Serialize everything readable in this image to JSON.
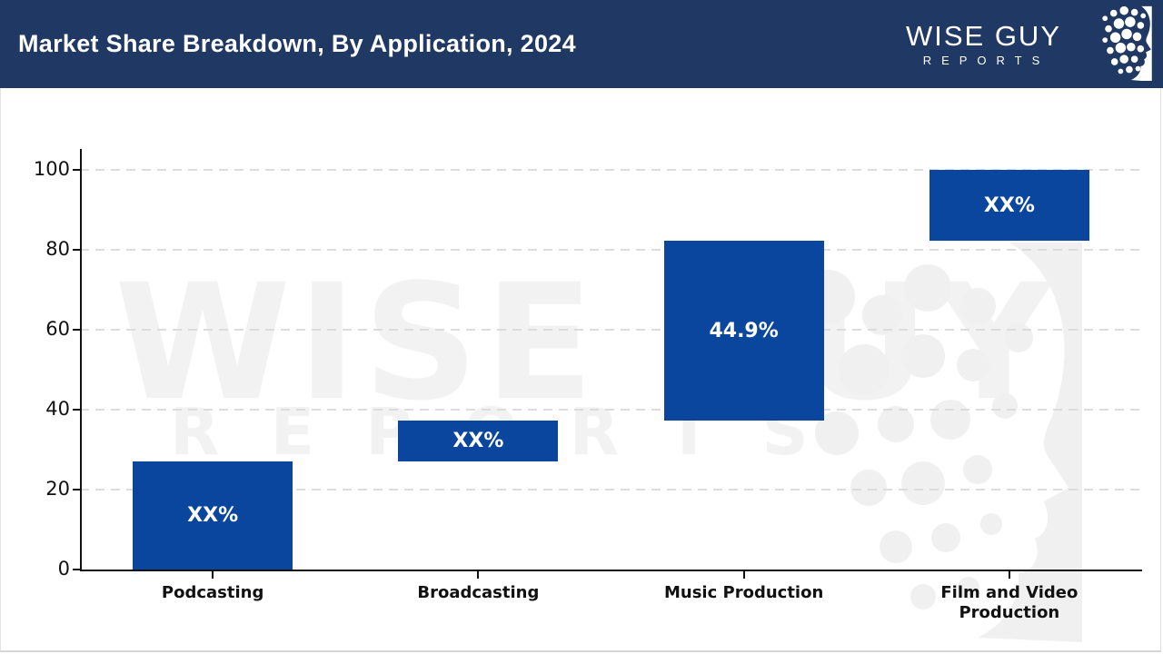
{
  "header": {
    "title": "Market Share Breakdown, By Application, 2024",
    "bg_color": "#203864"
  },
  "logo": {
    "line1": "WISE GUY",
    "line2": "REPORTS",
    "icon": "dotted-head-profile"
  },
  "watermark": {
    "line1": "WISE GUY",
    "line2": "REPORTS"
  },
  "chart_data": {
    "type": "bar",
    "subtype": "waterfall",
    "title": "Market Share Breakdown, By Application, 2024",
    "categories": [
      "Podcasting",
      "Broadcasting",
      "Music Production",
      "Film and Video Production"
    ],
    "bars": [
      {
        "category": "Podcasting",
        "start": 0,
        "end": 27.0,
        "value": 27.0,
        "label": "XX%"
      },
      {
        "category": "Broadcasting",
        "start": 27.0,
        "end": 37.3,
        "value": 10.3,
        "label": "XX%"
      },
      {
        "category": "Music Production",
        "start": 37.3,
        "end": 82.2,
        "value": 44.9,
        "label": "44.9%"
      },
      {
        "category": "Film and Video Production",
        "start": 82.2,
        "end": 100.0,
        "value": 17.8,
        "label": "XX%"
      }
    ],
    "ylabel": "",
    "xlabel": "",
    "yticks": [
      0,
      20,
      40,
      60,
      80,
      100
    ],
    "ylim": [
      0,
      105
    ],
    "grid": "horizontal-dashed",
    "legend": "none",
    "bar_color": "#0a469d",
    "bar_label_color": "#ffffff",
    "axis_color": "#111111",
    "gridline_color": "#dcdcdc"
  }
}
